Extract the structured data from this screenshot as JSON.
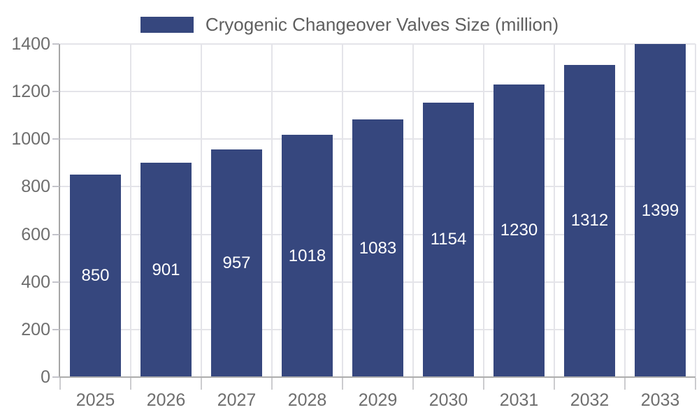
{
  "legend": {
    "label": "Cryogenic Changeover Valves Size (million)"
  },
  "chart_data": {
    "type": "bar",
    "title": "Cryogenic Changeover Valves Size (million)",
    "categories": [
      "2025",
      "2026",
      "2027",
      "2028",
      "2029",
      "2030",
      "2031",
      "2032",
      "2033"
    ],
    "series": [
      {
        "name": "Cryogenic Changeover Valves Size (million)",
        "values": [
          850,
          901,
          957,
          1018,
          1083,
          1154,
          1230,
          1312,
          1399
        ]
      }
    ],
    "xlabel": "",
    "ylabel": "",
    "ylim": [
      0,
      1400
    ],
    "ytick_interval": 200,
    "ytick_labels": [
      "0",
      "200",
      "400",
      "600",
      "800",
      "1000",
      "1200",
      "1400"
    ],
    "grid": true,
    "legend_position": "top-center",
    "bar_color": "#36477e",
    "value_label_color": "#ffffff",
    "value_label_position": "inside-center",
    "axis_label_color": "#6e6e6e",
    "gridline_color": "#e4e4e9"
  }
}
